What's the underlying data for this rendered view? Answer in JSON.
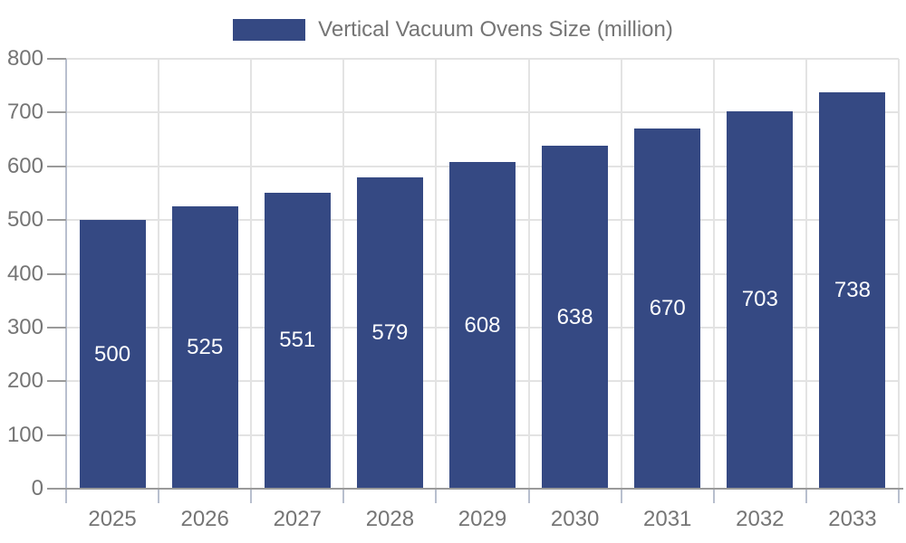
{
  "legend": {
    "label": "Vertical Vacuum Ovens Size (million)"
  },
  "colors": {
    "bar": "#354983",
    "grid": "#e3e3e3",
    "axis_line": "#9a9a9a",
    "axis_line_light": "#b8bfce",
    "axis_label": "#757575",
    "value_label": "#ffffff",
    "legend_text": "#757575"
  },
  "chart_data": {
    "type": "bar",
    "title": "Vertical Vacuum Ovens Size (million)",
    "categories": [
      "2025",
      "2026",
      "2027",
      "2028",
      "2029",
      "2030",
      "2031",
      "2032",
      "2033"
    ],
    "values": [
      500,
      525,
      551,
      579,
      608,
      638,
      670,
      703,
      738
    ],
    "xlabel": "",
    "ylabel": "",
    "ylim": [
      0,
      800
    ],
    "ytick_step": 100,
    "ytick_labels": [
      "0",
      "100",
      "200",
      "300",
      "400",
      "500",
      "600",
      "700",
      "800"
    ],
    "grid": true,
    "legend_position": "top",
    "bar_labels": true,
    "bar_label_position": "center"
  }
}
